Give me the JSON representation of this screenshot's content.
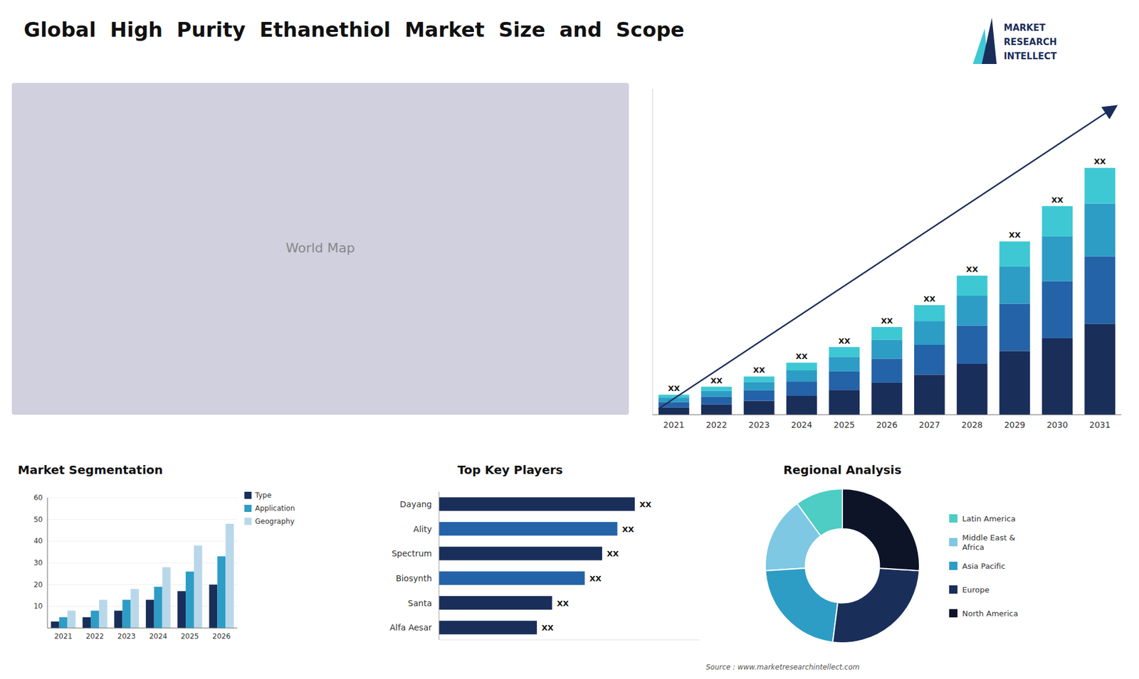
{
  "title": "Global  High  Purity  Ethanethiol  Market  Size  and  Scope",
  "logo_texts": [
    "MARKET",
    "RESEARCH",
    "INTELLECT"
  ],
  "map_placeholder": "World Map",
  "source": "Source : www.marketresearchintellect.com",
  "chart_data": [
    {
      "type": "bar",
      "stacked": true,
      "categories": [
        "2021",
        "2022",
        "2023",
        "2024",
        "2025",
        "2026",
        "2027",
        "2028",
        "2029",
        "2030",
        "2031"
      ],
      "series": [
        {
          "color": "#1a2e5a",
          "values": [
            2,
            2.8,
            3.8,
            5.2,
            6.8,
            8.8,
            11,
            14,
            17.5,
            21,
            25
          ]
        },
        {
          "color": "#2563a8",
          "values": [
            1.5,
            2.1,
            2.9,
            3.9,
            5.1,
            6.6,
            8.2,
            10.5,
            13,
            15.7,
            18.5
          ]
        },
        {
          "color": "#2d9dc5",
          "values": [
            1.2,
            1.7,
            2.3,
            3.1,
            4.0,
            5.2,
            6.5,
            8.2,
            10.2,
            12.3,
            14.5
          ]
        },
        {
          "color": "#3ec8d4",
          "values": [
            0.8,
            1.1,
            1.5,
            2.1,
            2.7,
            3.5,
            4.4,
            5.5,
            6.9,
            8.3,
            9.8
          ]
        }
      ],
      "ylim": [
        0,
        89.496
      ],
      "yticks": [],
      "tick_labels": "x",
      "annotations": [
        "XX",
        "XX",
        "XX",
        "XX",
        "XX",
        "XX",
        "XX",
        "XX",
        "XX",
        "XX",
        "XX"
      ]
    },
    {
      "type": "bar",
      "title": "Market Segmentation",
      "categories": [
        "2021",
        "2022",
        "2023",
        "2024",
        "2025",
        "2026"
      ],
      "series": [
        {
          "name": "Type",
          "color": "#1a2e5a",
          "values": [
            3,
            5,
            8,
            13,
            17,
            20
          ]
        },
        {
          "name": "Application",
          "color": "#2d9dc5",
          "values": [
            5,
            8,
            13,
            19,
            26,
            33
          ]
        },
        {
          "name": "Geography",
          "color": "#b8d8ea",
          "values": [
            8,
            13,
            18,
            28,
            38,
            48
          ]
        }
      ],
      "ylim": [
        0,
        60
      ],
      "yticks": [
        10,
        20,
        30,
        40,
        50,
        60
      ],
      "legend": "upper right"
    },
    {
      "type": "bar",
      "orientation": "horizontal",
      "title": "Top Key Players",
      "categories": [
        "Dayang",
        "Ality",
        "Spectrum",
        "Biosynth",
        "Santa",
        "Alfa Aesar"
      ],
      "values": [
        90,
        82,
        75,
        67,
        52,
        45
      ],
      "colors": [
        "#1a2e5a",
        "#2563a8",
        "#1a2e5a",
        "#2563a8",
        "#1a2e5a",
        "#1a2e5a"
      ],
      "xlim": [
        0,
        120
      ],
      "xticks": [],
      "tick_labels": "y",
      "annotations": [
        "XX",
        "XX",
        "XX",
        "XX",
        "XX",
        "XX"
      ]
    },
    {
      "type": "pie",
      "title": "Regional Analysis",
      "categories": [
        "Latin America",
        "Middle East &\nAfrica",
        "Asia Pacific",
        "Europe",
        "North America"
      ],
      "values": [
        10,
        16,
        22,
        26,
        26
      ],
      "colors": [
        "#4ecdc4",
        "#7ec8e3",
        "#2d9dc5",
        "#1a2e5a",
        "#0d1428"
      ],
      "legend": "right"
    }
  ]
}
